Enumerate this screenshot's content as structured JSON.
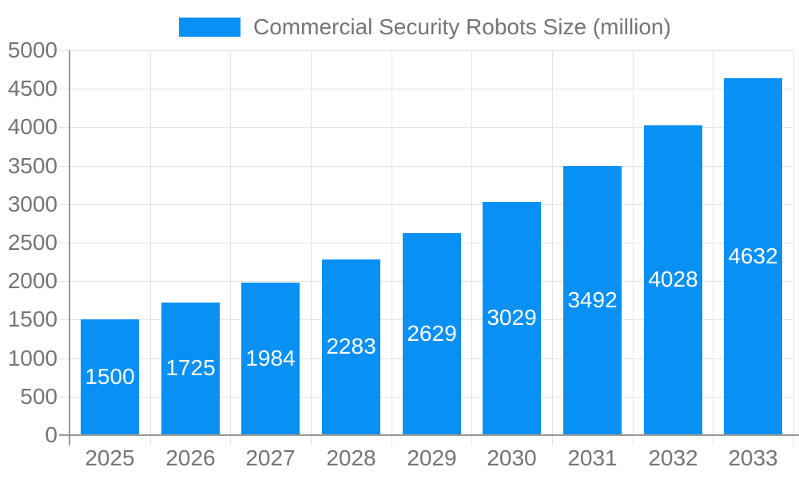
{
  "legend": {
    "label": "Commercial Security Robots Size (million)"
  },
  "chart_data": {
    "type": "bar",
    "title": "Commercial Security Robots Size (million)",
    "categories": [
      "2025",
      "2026",
      "2027",
      "2028",
      "2029",
      "2030",
      "2031",
      "2032",
      "2033"
    ],
    "series": [
      {
        "name": "Commercial Security Robots Size (million)",
        "values": [
          1500,
          1725,
          1984,
          2283,
          2629,
          3029,
          3492,
          4028,
          4632
        ]
      }
    ],
    "yticks": [
      0,
      500,
      1000,
      1500,
      2000,
      2500,
      3000,
      3500,
      4000,
      4500,
      5000
    ],
    "ylim": [
      0,
      5000
    ],
    "xlabel": "",
    "ylabel": "",
    "grid": true,
    "legend_position": "top-center",
    "value_label_position": "inside-center"
  },
  "colors": {
    "bar": "#0990F5",
    "grid": "#E3E3E3",
    "axis": "#999999",
    "tick_text": "#757575",
    "legend_text": "#757575",
    "value_text": "#FFFFFF",
    "background": "#FFFFFF"
  }
}
